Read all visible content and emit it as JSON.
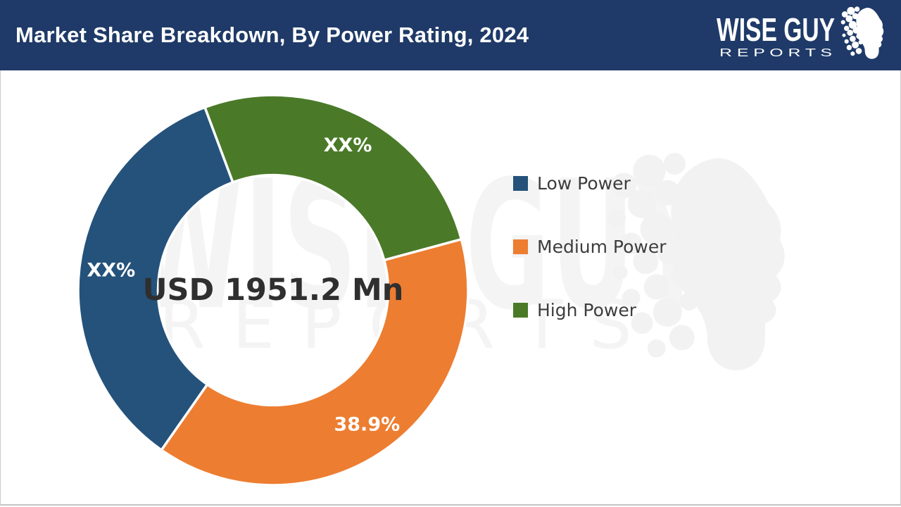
{
  "header": {
    "title": "Market Share Breakdown, By Power Rating, 2024",
    "bg_color": "#1f3a68",
    "logo": {
      "line1": "WISE GUY",
      "line2": "R E P O R T S"
    }
  },
  "chart_data": {
    "type": "pie",
    "subtype": "donut",
    "title": "Market Share Breakdown, By Power Rating, 2024",
    "center_label": "USD 1951.2 Mn",
    "start_angle_deg": -20.5,
    "inner_radius_ratio": 0.59,
    "legend_position": "right",
    "segments": [
      {
        "name": "Low Power",
        "label": "XX%",
        "value_pct": 34.6,
        "color": "#24527b"
      },
      {
        "name": "Medium Power",
        "label": "38.9%",
        "value_pct": 38.9,
        "color": "#ed7d31"
      },
      {
        "name": "High Power",
        "label": "XX%",
        "value_pct": 26.5,
        "color": "#4a7a28"
      }
    ],
    "draw_order": [
      2,
      1,
      0
    ]
  },
  "watermark": {
    "line1": "WISE GUY",
    "line2": "R E P O R T S"
  }
}
